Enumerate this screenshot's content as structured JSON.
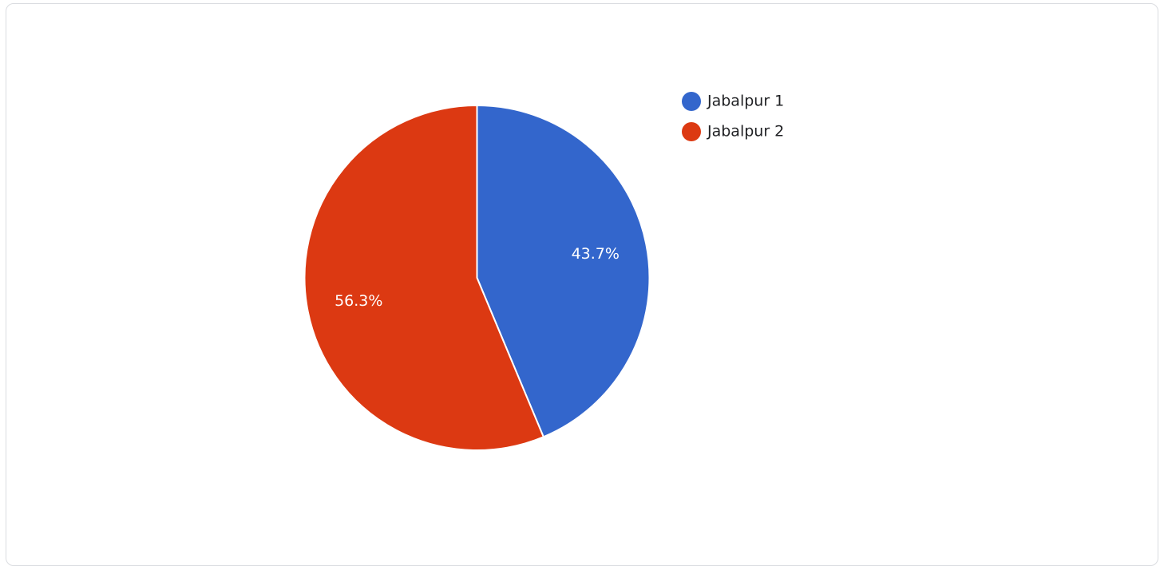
{
  "chart_data": {
    "type": "pie",
    "slices": [
      {
        "label": "Jabalpur 1",
        "percent": 43.7,
        "percent_label": "43.7%",
        "color": "#3366cc"
      },
      {
        "label": "Jabalpur 2",
        "percent": 56.3,
        "percent_label": "56.3%",
        "color": "#dc3912"
      }
    ],
    "legend_position": "right",
    "start_angle": "top",
    "direction": "clockwise"
  }
}
